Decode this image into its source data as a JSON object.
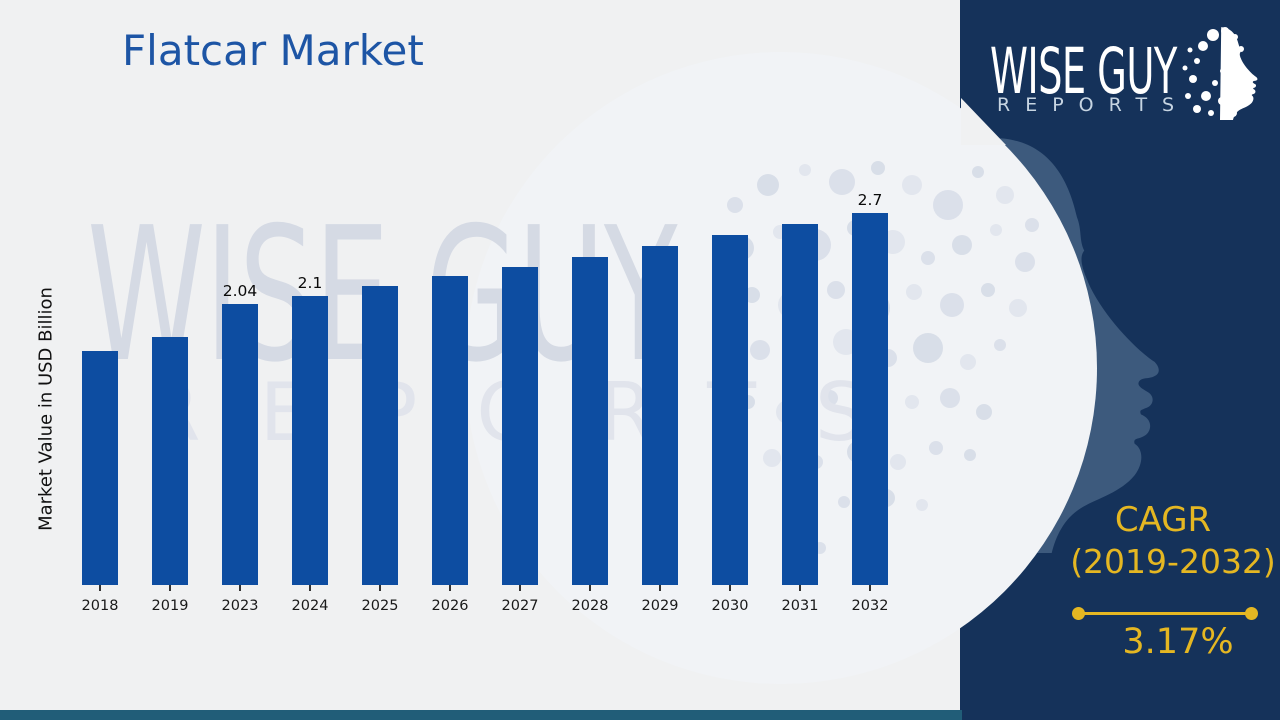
{
  "title": "Flatcar Market",
  "y_axis_label": "Market Value in USD Billion",
  "watermark": {
    "line1": "WISE GUY",
    "line2": "REPORTS"
  },
  "logo": {
    "line1": "WISE GUY",
    "line2": "REPORTS"
  },
  "cagr": {
    "label": "CAGR",
    "range": "(2019-2032)",
    "value": "3.17%"
  },
  "colors": {
    "bg": "#f0f1f2",
    "bar_blue": "#0d4da1",
    "title_blue": "#1d55a5",
    "navy_panel": "#15325a",
    "gold": "#e5b722",
    "teal_strip": "#215d78",
    "face_blue": "#3d5a7d",
    "watermark_text": "#d5dae4",
    "circle_fill": "#f1f3f6",
    "dot_gray": "#dbe0ea"
  },
  "chart_data": {
    "type": "bar",
    "title": "Flatcar Market",
    "xlabel": "",
    "ylabel": "Market Value in USD Billion",
    "categories": [
      "2018",
      "2019",
      "2023",
      "2024",
      "2025",
      "2026",
      "2027",
      "2028",
      "2029",
      "2030",
      "2031",
      "2032"
    ],
    "values": [
      1.7,
      1.8,
      2.04,
      2.1,
      2.17,
      2.24,
      2.31,
      2.38,
      2.46,
      2.54,
      2.62,
      2.7
    ],
    "bar_labels": [
      "",
      "",
      "2.04",
      "2.1",
      "",
      "",
      "",
      "",
      "",
      "",
      "",
      "2.7"
    ],
    "ylim": [
      0,
      2.7
    ],
    "bar_color": "#0d4da1",
    "grid": false,
    "legend": null,
    "notes": "x-axis years skip 2020-2022; value labels shown only for 2023, 2024 and 2032"
  }
}
